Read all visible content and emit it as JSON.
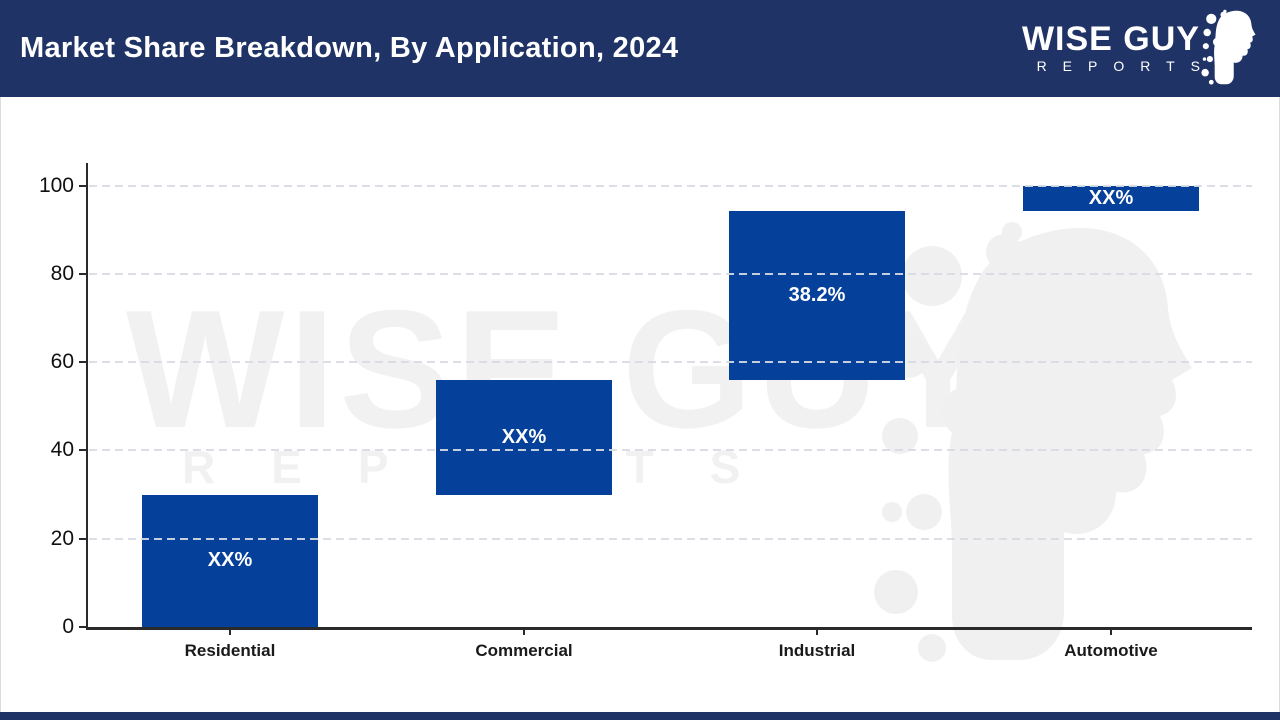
{
  "header": {
    "title": "Market Share Breakdown, By Application, 2024",
    "logo": {
      "wordmark": "WISE GUY",
      "sub": "REPORTS"
    }
  },
  "watermark": {
    "line1": "WISE GUY",
    "line2": "REPORTS"
  },
  "chart_data": {
    "type": "bar",
    "variant": "waterfall-breakdown",
    "title": "Market Share Breakdown, By Application, 2024",
    "categories": [
      "Residential",
      "Commercial",
      "Industrial",
      "Automotive"
    ],
    "segments": [
      {
        "category": "Residential",
        "start": 0,
        "end": 30,
        "value": 30,
        "label": "XX%"
      },
      {
        "category": "Commercial",
        "start": 30,
        "end": 56,
        "value": 26,
        "label": "XX%"
      },
      {
        "category": "Industrial",
        "start": 56,
        "end": 94.2,
        "value": 38.2,
        "label": "38.2%"
      },
      {
        "category": "Automotive",
        "start": 94.2,
        "end": 100,
        "value": 5.8,
        "label": "XX%"
      }
    ],
    "xlabel": "",
    "ylabel": "",
    "ylim": [
      0,
      100
    ],
    "yticks": [
      0,
      20,
      40,
      60,
      80,
      100
    ],
    "grid": "horizontal-dashed",
    "legend": "none",
    "bar_color": "#05409a"
  },
  "colors": {
    "header_bg": "#203366",
    "footer_bg": "#203366",
    "bar": "#05409a",
    "grid": "#d9dce2",
    "axis": "#2a2a2a",
    "tick_label": "#111111",
    "bar_label": "#ffffff",
    "watermark": "#f1f1f1"
  }
}
